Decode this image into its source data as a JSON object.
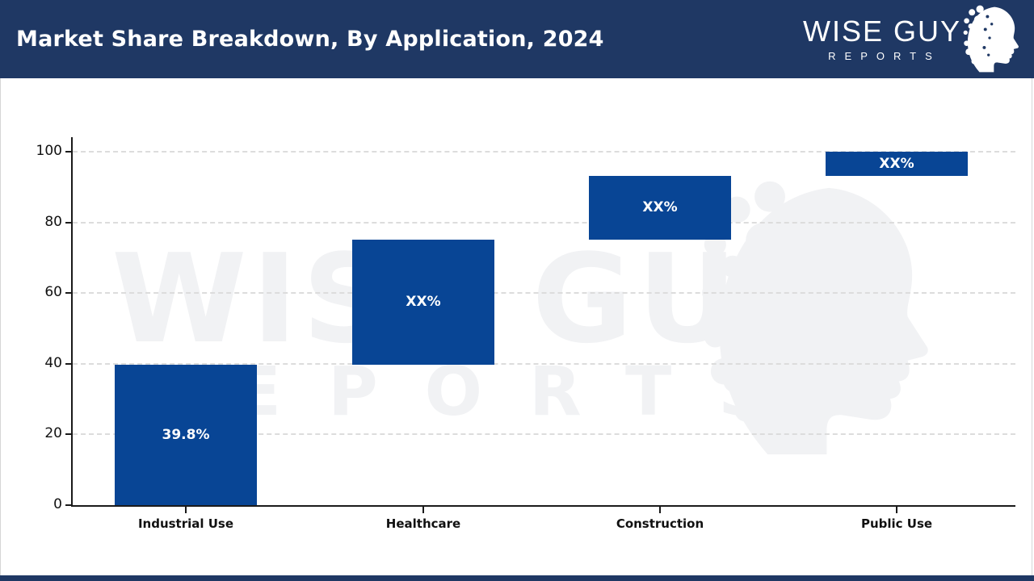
{
  "header": {
    "title": "Market Share Breakdown, By Application, 2024",
    "bg_color": "#1f3864",
    "logo": {
      "line1": "WISE GUY",
      "line2": "REPORTS"
    }
  },
  "watermark": {
    "line1": "WISE GUY",
    "line2": "REPORTS"
  },
  "chart_data": {
    "type": "bar",
    "subtype": "waterfall",
    "title": "Market Share Breakdown, By Application, 2024",
    "categories": [
      "Industrial Use",
      "Healthcare",
      "Construction",
      "Public Use"
    ],
    "segments": [
      {
        "category": "Industrial Use",
        "start": 0,
        "end": 39.8,
        "label": "39.8%"
      },
      {
        "category": "Healthcare",
        "start": 39.8,
        "end": 75.2,
        "label": "XX%"
      },
      {
        "category": "Construction",
        "start": 75.2,
        "end": 93.1,
        "label": "XX%"
      },
      {
        "category": "Public Use",
        "start": 93.1,
        "end": 100,
        "label": "XX%"
      }
    ],
    "xlabel": "",
    "ylabel": "",
    "ylim": [
      0,
      104
    ],
    "yticks": [
      0,
      20,
      40,
      60,
      80,
      100
    ],
    "grid": "horizontal-dashed",
    "legend": "none",
    "bar_color": "#084595",
    "bar_label_color": "#ffffff"
  }
}
